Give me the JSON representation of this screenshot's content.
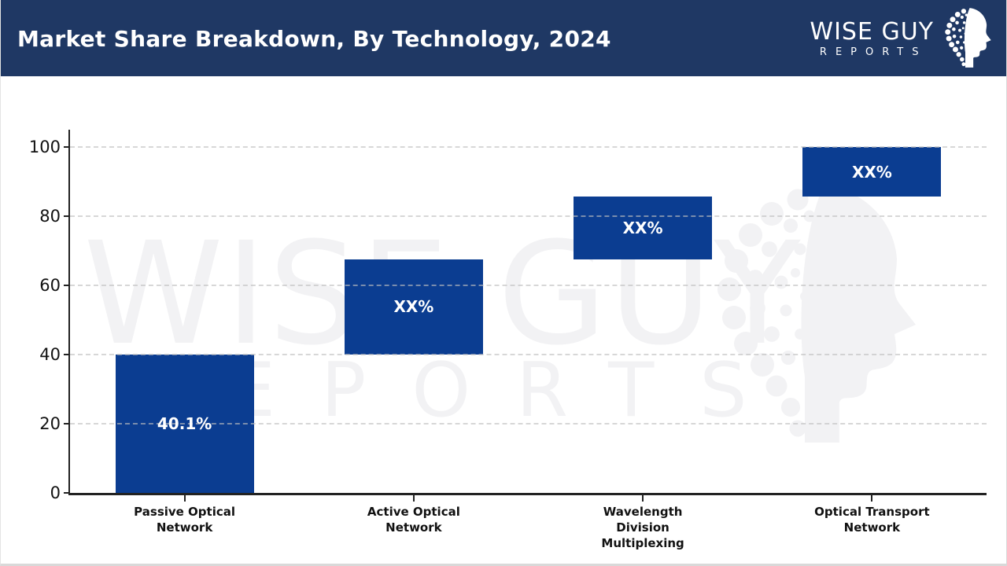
{
  "header": {
    "title": "Market Share Breakdown, By Technology, 2024",
    "logo": {
      "line1": "WISE GUY",
      "line2": "REPORTS",
      "head_icon": "dotted-face-profile"
    }
  },
  "watermark": {
    "line1": "WISE GUY",
    "line2": "REPORTS"
  },
  "colors": {
    "header_bg": "#1f3864",
    "bar": "#0b3d91",
    "bar_label": "#ffffff",
    "axis": "#222222",
    "gridline": "#bfbfbf",
    "watermark": "#f2f2f4",
    "page_border": "#d9d9d9"
  },
  "chart_data": {
    "type": "bar",
    "subtype": "waterfall",
    "title": "Market Share Breakdown, By Technology, 2024",
    "categories": [
      "Passive Optical Network",
      "Active Optical Network",
      "Wavelength Division Multiplexing",
      "Optical Transport Network"
    ],
    "category_display_lines": [
      [
        "Passive Optical",
        "Network"
      ],
      [
        "Active Optical",
        "Network"
      ],
      [
        "Wavelength",
        "Division",
        "Multiplexing"
      ],
      [
        "Optical Transport",
        "Network"
      ]
    ],
    "segments": [
      {
        "category": "Passive Optical Network",
        "label": "40.1%",
        "start": 0,
        "end": 40.1
      },
      {
        "category": "Active Optical Network",
        "label": "XX%",
        "start": 40.1,
        "end": 67.5
      },
      {
        "category": "Wavelength Division Multiplexing",
        "label": "XX%",
        "start": 67.5,
        "end": 85.7
      },
      {
        "category": "Optical Transport Network",
        "label": "XX%",
        "start": 85.7,
        "end": 100
      }
    ],
    "xlabel": "",
    "ylabel": "",
    "ylim": [
      0,
      100
    ],
    "yticks": [
      0,
      20,
      40,
      60,
      80,
      100
    ],
    "grid": "horizontal-dashed",
    "legend": null
  }
}
